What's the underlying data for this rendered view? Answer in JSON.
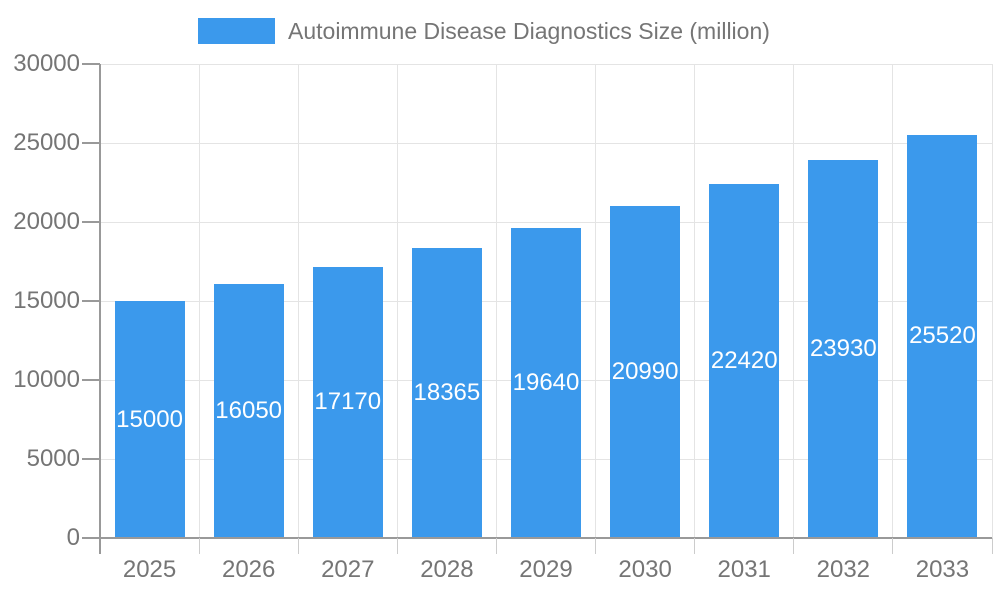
{
  "chart_data": {
    "type": "bar",
    "title": "Autoimmune Disease Diagnostics Size (million)",
    "categories": [
      "2025",
      "2026",
      "2027",
      "2028",
      "2029",
      "2030",
      "2031",
      "2032",
      "2033"
    ],
    "series": [
      {
        "name": "Autoimmune Disease Diagnostics Size (million)",
        "values": [
          15000,
          16050,
          17170,
          18365,
          19640,
          20990,
          22420,
          23930,
          25520
        ]
      }
    ],
    "value_labels_shown": true,
    "xlabel": "",
    "ylabel": "",
    "ylim": [
      0,
      30000
    ],
    "y_ticks": [
      0,
      5000,
      10000,
      15000,
      20000,
      25000,
      30000
    ],
    "grid": true,
    "legend_position": "top",
    "colors": {
      "bar": "#3b99ec",
      "value_label": "#ffffff",
      "axis_label": "#757575",
      "axis_line": "#999999",
      "gridline": "#e4e4e4",
      "x_tick": "#cccccc"
    }
  }
}
